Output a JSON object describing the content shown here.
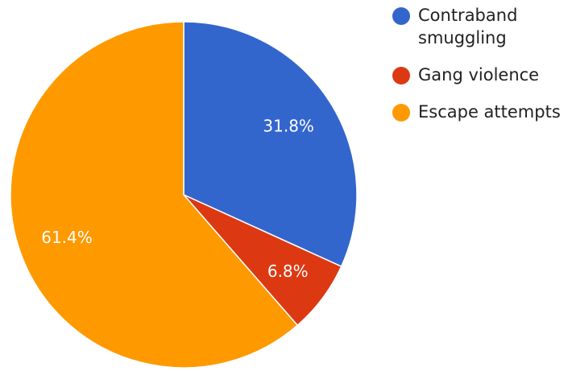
{
  "chart_data": {
    "type": "pie",
    "title": "",
    "categories": [
      "Contraband smuggling",
      "Gang violence",
      "Escape attempts"
    ],
    "values": [
      31.8,
      6.8,
      61.4
    ],
    "value_labels": [
      "31.8%",
      "6.8%",
      "61.4%"
    ],
    "colors": [
      "#3366cc",
      "#dc3912",
      "#ff9900"
    ],
    "legend": {
      "position": "right",
      "entries": [
        {
          "lines": [
            "Contraband",
            "smuggling"
          ],
          "color": "#3366cc"
        },
        {
          "lines": [
            "Gang violence"
          ],
          "color": "#dc3912"
        },
        {
          "lines": [
            "Escape attempts"
          ],
          "color": "#ff9900"
        }
      ]
    },
    "start_angle": "12 o'clock",
    "direction": "clockwise"
  }
}
